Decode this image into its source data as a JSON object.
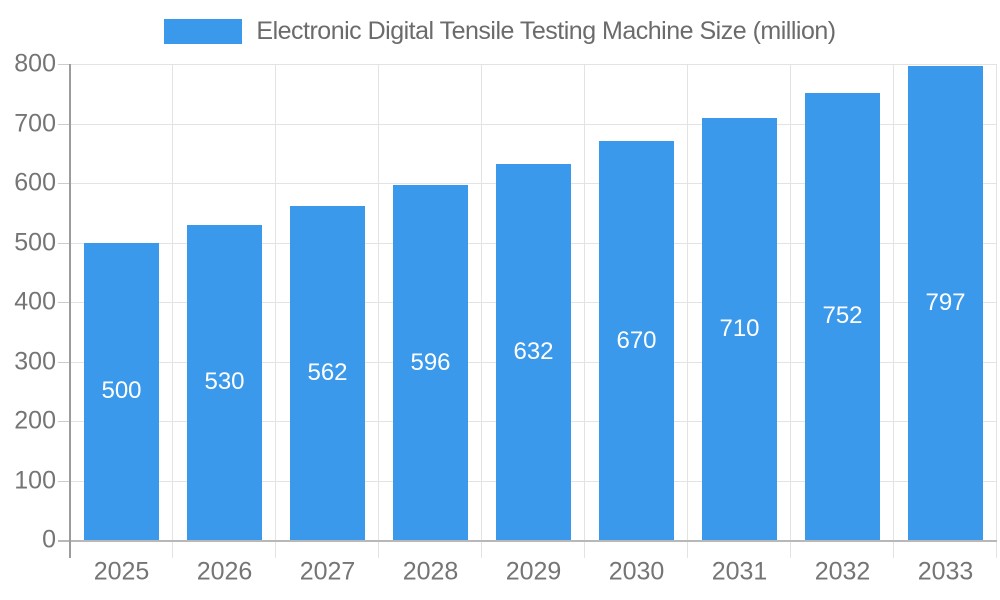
{
  "chart_data": {
    "type": "bar",
    "title": "Electronic Digital Tensile Testing Machine Size (million)",
    "categories": [
      "2025",
      "2026",
      "2027",
      "2028",
      "2029",
      "2030",
      "2031",
      "2032",
      "2033"
    ],
    "values": [
      500,
      530,
      562,
      596,
      632,
      670,
      710,
      752,
      797
    ],
    "data_labels": [
      "500",
      "530",
      "562",
      "596",
      "632",
      "670",
      "710",
      "752",
      "797"
    ],
    "xlabel": "",
    "ylabel": "",
    "ylim": [
      0,
      800
    ],
    "ytick_step": 100,
    "ytick_labels": [
      "0",
      "100",
      "200",
      "300",
      "400",
      "500",
      "600",
      "700",
      "800"
    ],
    "grid": "horizontal and vertical light gray gridlines",
    "legend_position": "top-center",
    "colors": {
      "bar": "#3b99ec",
      "gridline": "#e3e3e3",
      "y_axis_line": "#9c9c9c",
      "x_axis_line": "#b8b8b8",
      "tick": "#cccccc",
      "axis_label_text": "#757575",
      "title_text": "#6b6b6b",
      "bar_value_text": "#ffffff",
      "background": "#ffffff"
    }
  }
}
